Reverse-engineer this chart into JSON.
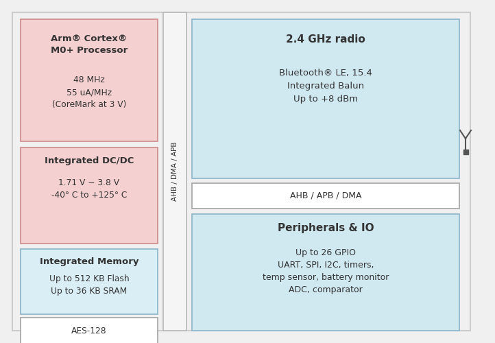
{
  "bg_color": "#f0f0f0",
  "pink_bg": "#f5d0d0",
  "pink_border": "#d09090",
  "blue_bg": "#d0e8f0",
  "blue_border": "#90b8cc",
  "white_bg": "#ffffff",
  "white_border": "#aaaaaa",
  "memory_bg": "#daeef5",
  "memory_border": "#90b8cc",
  "text_dark": "#333333",
  "bus_bg": "#f5f5f5",
  "bus_border": "#bbbbbb",
  "outer_bg": "#f0f0f0",
  "outer_border": "#cccccc",
  "processor_title": "Arm® Cortex®\nM0+ Processor",
  "processor_body": "48 MHz\n55 uA/MHz\n(CoreMark at 3 V)",
  "dcdc_title": "Integrated DC/DC",
  "dcdc_body": "1.71 V − 3.8 V\n-40° C to +125° C",
  "memory_title": "Integrated Memory",
  "memory_body": "Up to 512 KB Flash\nUp to 36 KB SRAM",
  "aes_label": "AES-128",
  "bus_label": "AHB / DMA / APB",
  "radio_title": "2.4 GHz radio",
  "radio_body": "Bluetooth® LE, 15.4\nIntegrated Balun\nUp to +8 dBm",
  "ahb_label": "AHB / APB / DMA",
  "periph_title": "Peripherals & IO",
  "periph_body": "Up to 26 GPIO\nUART, SPI, I2C, timers,\ntemp sensor, battery monitor\nADC, comparator"
}
